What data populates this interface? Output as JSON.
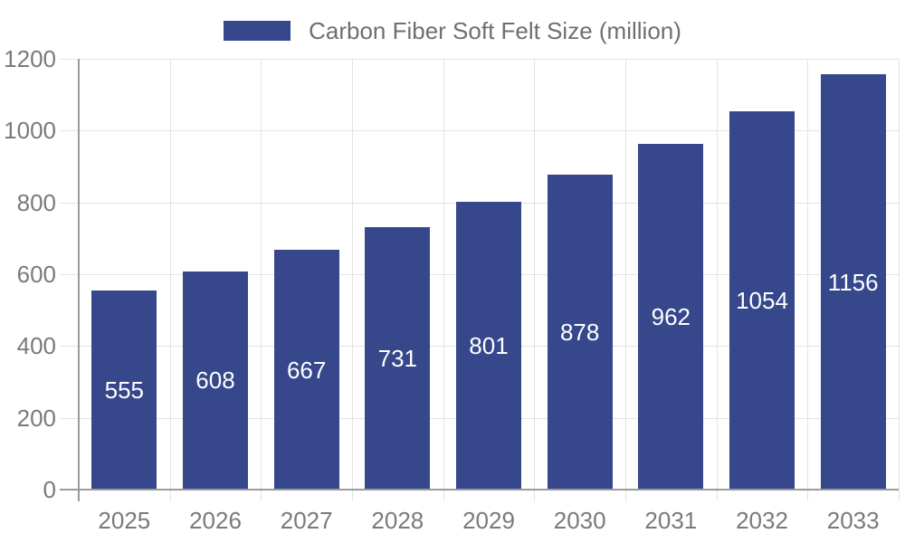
{
  "legend": {
    "label": "Carbon Fiber Soft Felt Size (million)",
    "swatch_color": "#36478b"
  },
  "chart_data": {
    "type": "bar",
    "title": "Carbon Fiber Soft Felt Size (million)",
    "series_name": "Carbon Fiber Soft Felt Size (million)",
    "categories": [
      "2025",
      "2026",
      "2027",
      "2028",
      "2029",
      "2030",
      "2031",
      "2032",
      "2033"
    ],
    "values": [
      555,
      608,
      667,
      731,
      801,
      878,
      962,
      1054,
      1156
    ],
    "xlabel": "",
    "ylabel": "",
    "ylim": [
      0,
      1200
    ],
    "yticks": [
      0,
      200,
      400,
      600,
      800,
      1000,
      1200
    ],
    "grid": true,
    "legend_position": "top",
    "bar_color": "#36478b",
    "value_label_color": "#ffffff",
    "axis_color": "#9b9b9b",
    "grid_color": "#e3e3e3",
    "tick_label_color": "#7a7a7a",
    "legend_text_color": "#6f6f6f",
    "background_color": "#ffffff"
  }
}
